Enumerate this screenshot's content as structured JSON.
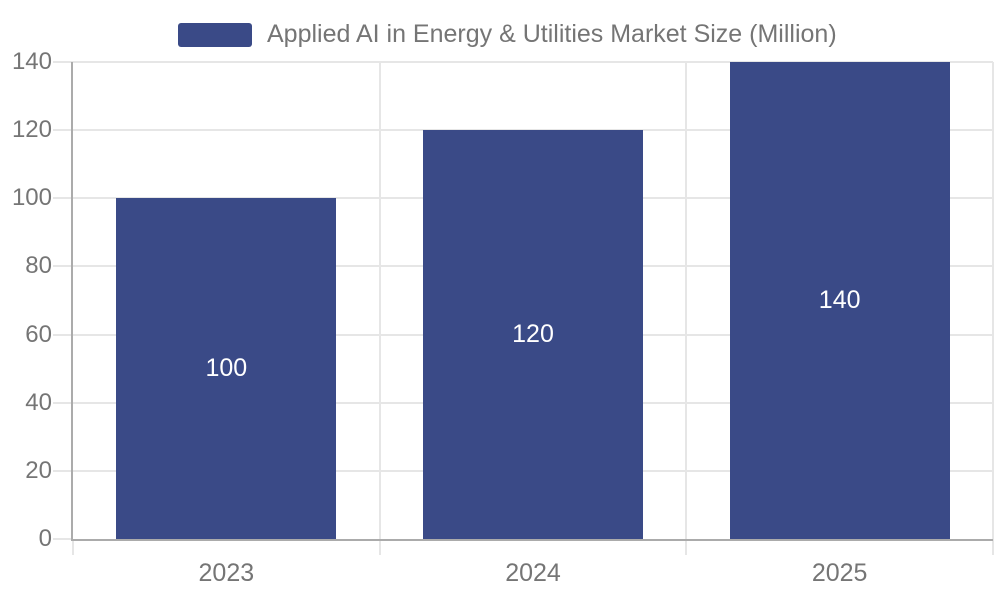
{
  "legend": {
    "label": "Applied AI in Energy & Utilities Market Size (Million)"
  },
  "colors": {
    "bar": "#3A4A87",
    "axis_line": "#ababab",
    "gridline": "#e6e6e6",
    "tick_label": "#757575",
    "value_label": "#ffffff",
    "background": "#ffffff"
  },
  "chart_data": {
    "type": "bar",
    "title": "Applied AI in Energy & Utilities Market Size (Million)",
    "series_name": "Applied AI in Energy & Utilities Market Size (Million)",
    "categories": [
      "2023",
      "2024",
      "2025"
    ],
    "values": [
      100,
      120,
      140
    ],
    "value_labels": [
      "100",
      "120",
      "140"
    ],
    "value_label_position": "inside-center",
    "xlabel": "",
    "ylabel": "",
    "ylim": [
      0,
      140
    ],
    "yticks": [
      0,
      20,
      40,
      60,
      80,
      100,
      120,
      140
    ],
    "grid": true,
    "legend_position": "top-center",
    "bar_color": "#3A4A87"
  }
}
